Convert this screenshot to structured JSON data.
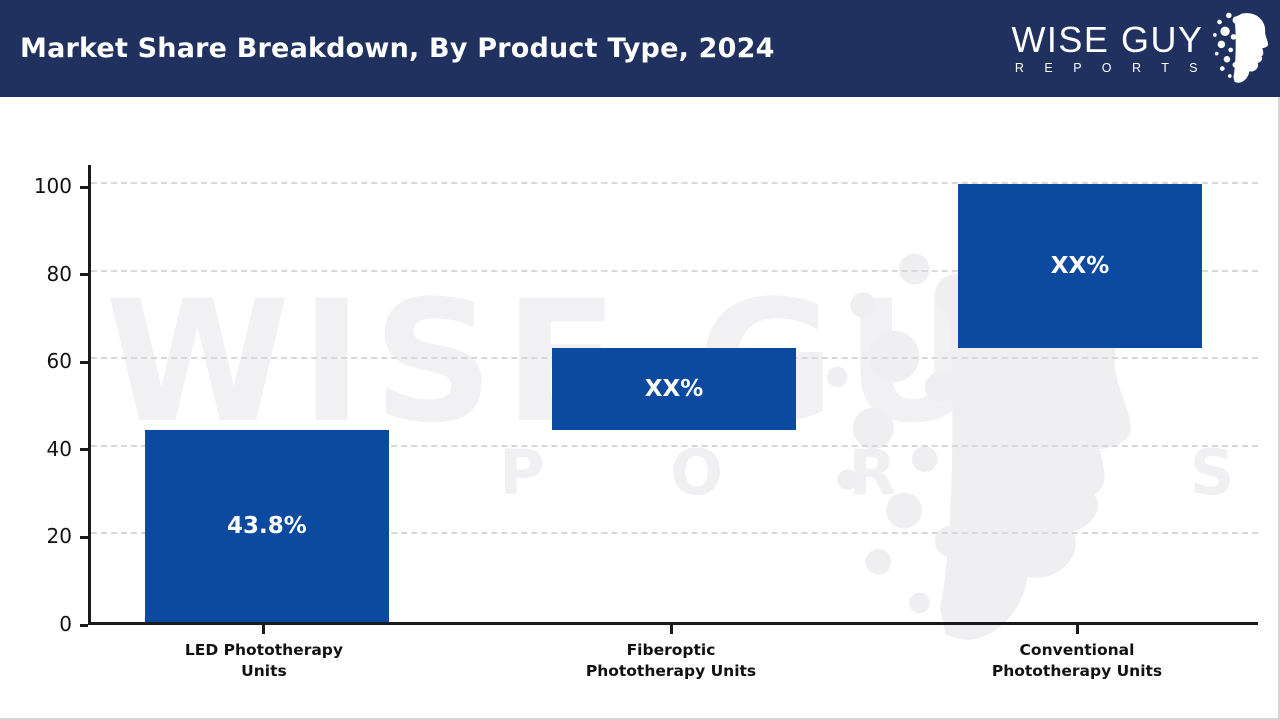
{
  "header": {
    "title": "Market Share Breakdown, By Product Type, 2024",
    "bg_color": "#203160",
    "logo": {
      "name": "WISE GUY REPORTS",
      "line1": "WISE GUY",
      "line2": "R E P O R T S"
    }
  },
  "watermark": {
    "line1": "WISE GUY",
    "line2": "R E P O R T S"
  },
  "chart_data": {
    "type": "bar",
    "subtype": "waterfall",
    "title": "Market Share Breakdown, By Product Type, 2024",
    "categories": [
      "LED Phototherapy\nUnits",
      "Fiberoptic\nPhototherapy Units",
      "Conventional\nPhototherapy Units"
    ],
    "series": [
      {
        "name": "Market share (%)",
        "segments": [
          {
            "category": "LED Phototherapy Units",
            "start": 0,
            "end": 43.8,
            "label": "43.8%"
          },
          {
            "category": "Fiberoptic Phototherapy Units",
            "start": 43.8,
            "end": 62.6,
            "label": "XX%"
          },
          {
            "category": "Conventional Phototherapy Units",
            "start": 62.6,
            "end": 100,
            "label": "XX%"
          }
        ]
      }
    ],
    "ylim": [
      0,
      100
    ],
    "yticks": [
      0,
      20,
      40,
      60,
      80,
      100
    ],
    "xlabel": "",
    "ylabel": "",
    "legend": "none",
    "grid": "horizontal-dashed",
    "grid_color": "#d8d8d8",
    "bar_color": "#0b4a9e",
    "value_label_color": "#ffffff",
    "axis_color": "#1a1a1a"
  }
}
